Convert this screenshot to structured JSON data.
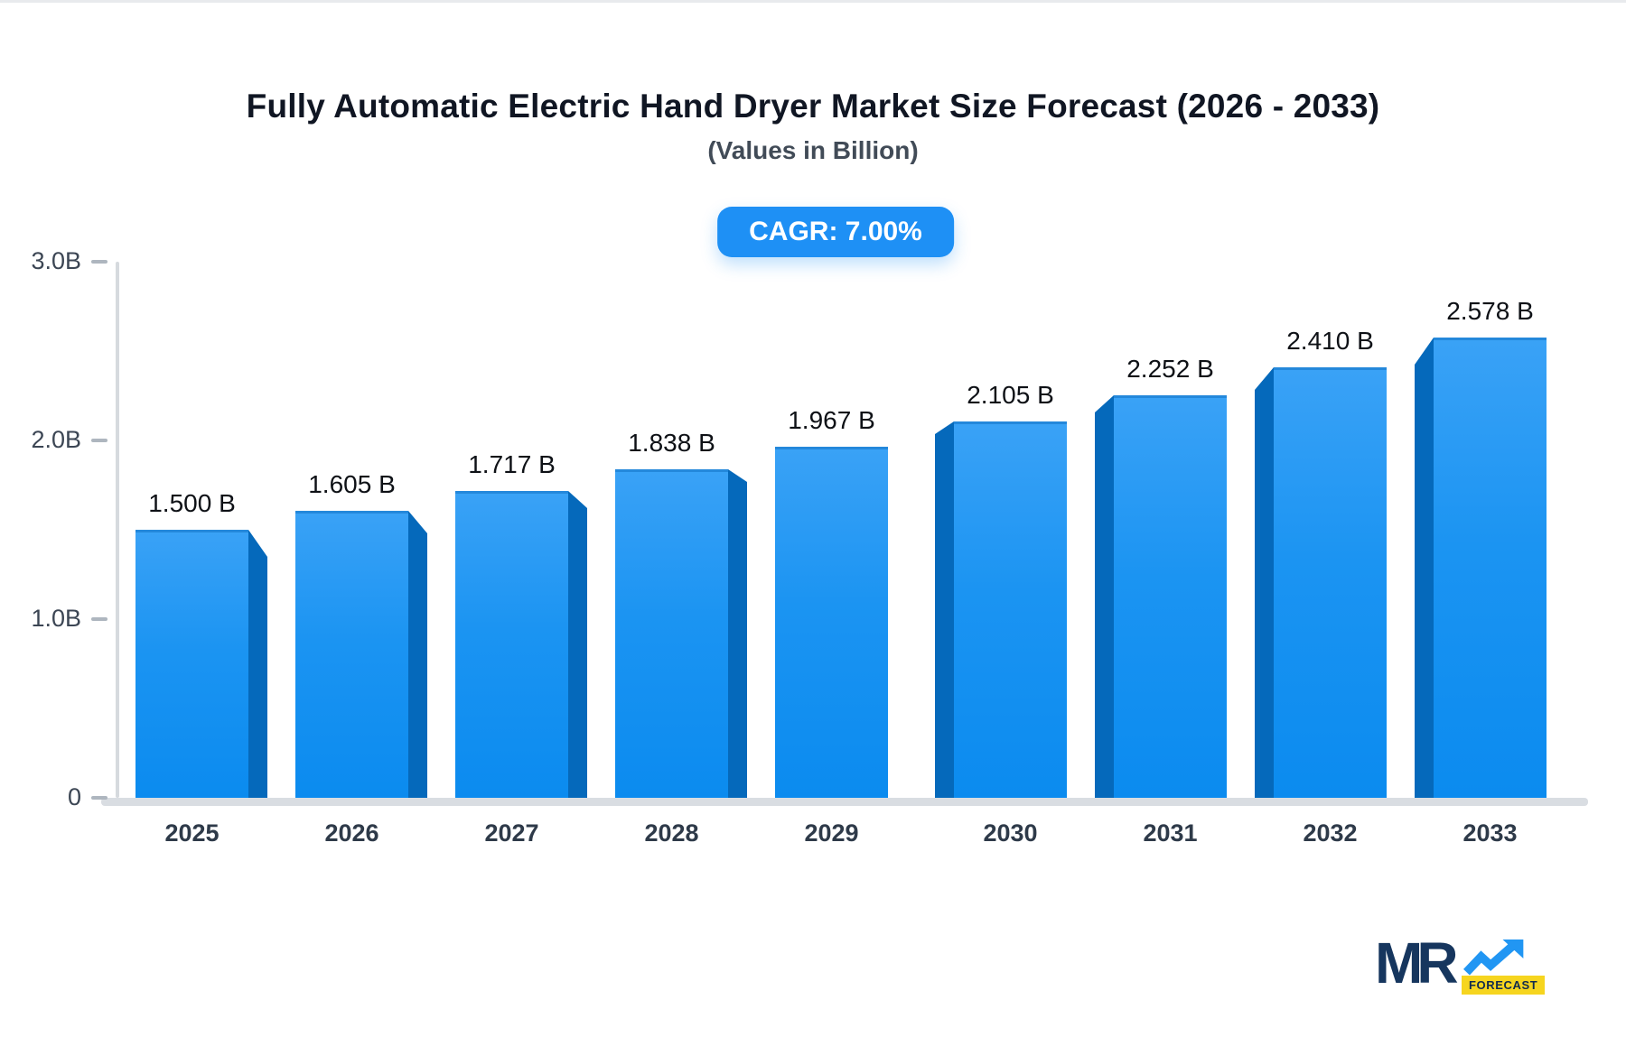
{
  "header": {
    "title": "Fully Automatic Electric Hand Dryer Market Size Forecast (2026 - 2033)",
    "subtitle": "(Values in Billion)"
  },
  "badge": {
    "label": "CAGR: 7.00%"
  },
  "chart_data": {
    "type": "bar",
    "title": "Fully Automatic Electric Hand Dryer Market Size Forecast (2026 - 2033)",
    "subtitle": "(Values in Billion)",
    "categories": [
      "2025",
      "2026",
      "2027",
      "2028",
      "2029",
      "2030",
      "2031",
      "2032",
      "2033"
    ],
    "values": [
      1.5,
      1.605,
      1.717,
      1.838,
      1.967,
      2.105,
      2.252,
      2.41,
      2.578
    ],
    "value_labels": [
      "1.500 B",
      "1.605 B",
      "1.717 B",
      "1.838 B",
      "1.967 B",
      "2.105 B",
      "2.252 B",
      "2.410 B",
      "2.578 B"
    ],
    "xlabel": "",
    "ylabel": "",
    "ylim": [
      0,
      3
    ],
    "yticks": [
      {
        "label": "3.0B",
        "value": 3.0
      },
      {
        "label": "2.0B",
        "value": 2.0
      },
      {
        "label": "1.0B",
        "value": 1.0
      },
      {
        "label": "0",
        "value": 0
      }
    ],
    "grid": false,
    "legend": false,
    "cagr_label": "CAGR: 7.00%",
    "colors": {
      "bar_top": "#3aa2f6",
      "bar_bottom": "#0b8bef",
      "bar_side": "#0569bb",
      "axis": "#d6dade",
      "badge": "#1e90f5"
    }
  },
  "logo": {
    "text": "MR",
    "sub_label": "FORECAST"
  }
}
